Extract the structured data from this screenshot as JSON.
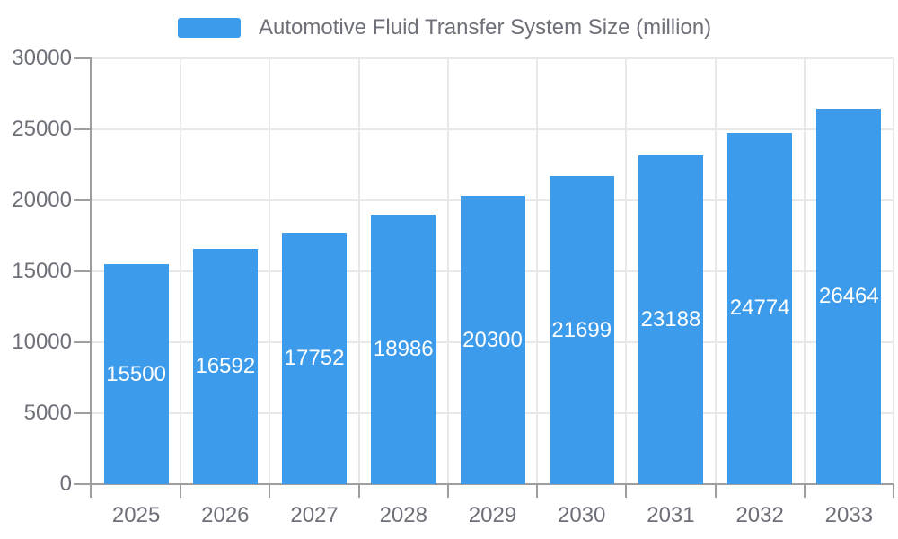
{
  "colors": {
    "bar": "#3C9BEB",
    "axis_line": "#9E9E9E",
    "gridline": "#E8E8E8",
    "axis_label": "#6E7079",
    "legend_label": "#6E7079",
    "value_label": "#FFFFFF",
    "background": "#FFFFFF"
  },
  "legend": {
    "label": "Automotive Fluid Transfer System Size (million)"
  },
  "chart_data": {
    "type": "bar",
    "title": "",
    "categories": [
      "2025",
      "2026",
      "2027",
      "2028",
      "2029",
      "2030",
      "2031",
      "2032",
      "2033"
    ],
    "series": [
      {
        "name": "Automotive Fluid Transfer System Size (million)",
        "values": [
          15500,
          16592,
          17752,
          18986,
          20300,
          21699,
          23188,
          24774,
          26464
        ]
      }
    ],
    "value_labels_shown": true,
    "value_label_position": "inside-middle",
    "xlabel": "",
    "ylabel": "",
    "ylim": [
      0,
      30000
    ],
    "ytick_step": 5000,
    "yticks": [
      0,
      5000,
      10000,
      15000,
      20000,
      25000,
      30000
    ],
    "grid": true,
    "grid_vertical": true,
    "legend_position": "top"
  }
}
